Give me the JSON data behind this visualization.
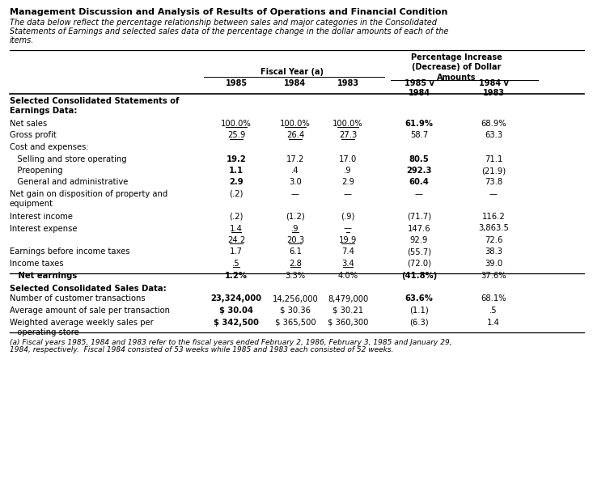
{
  "title": "Management Discussion and Analysis of Results of Operations and Financial Condition",
  "subtitle": "The data below reflect the percentage relationship between sales and major categories in the Consolidated\nStatements of Earnings and selected sales data of the percentage change in the dollar amounts of each of the\nitems.",
  "footnote": "(a) Fiscal years 1985, 1984 and 1983 refer to the fiscal years ended February 2, 1986, February 3, 1985 and January 29,\n1984, respectively.  Fiscal 1984 consisted of 53 weeks while 1985 and 1983 each consisted of 52 weeks.",
  "rows": [
    {
      "label": "Selected Consolidated Statements of\nEarnings Data:",
      "vals": [
        "",
        "",
        "",
        "",
        ""
      ],
      "label_bold": true,
      "val_bold": [
        false,
        false,
        false,
        false,
        false
      ],
      "section_header": true,
      "top_border": false,
      "underline": []
    },
    {
      "label": "Net sales",
      "vals": [
        "100.0%",
        "100.0%",
        "100.0%",
        "61.9%",
        "68.9%"
      ],
      "label_bold": false,
      "val_bold": [
        false,
        false,
        false,
        true,
        false
      ],
      "section_header": false,
      "top_border": false,
      "underline": [
        0,
        1,
        2
      ]
    },
    {
      "label": "Gross profit",
      "vals": [
        "25.9",
        "26.4",
        "27.3",
        "58.7",
        "63.3"
      ],
      "label_bold": false,
      "val_bold": [
        false,
        false,
        false,
        false,
        false
      ],
      "section_header": false,
      "top_border": false,
      "underline": [
        0,
        1,
        2
      ]
    },
    {
      "label": "Cost and expenses:",
      "vals": [
        "",
        "",
        "",
        "",
        ""
      ],
      "label_bold": false,
      "val_bold": [
        false,
        false,
        false,
        false,
        false
      ],
      "section_header": false,
      "top_border": false,
      "underline": []
    },
    {
      "label": "   Selling and store operating",
      "vals": [
        "19.2",
        "17.2",
        "17.0",
        "80.5",
        "71.1"
      ],
      "label_bold": false,
      "val_bold": [
        true,
        false,
        false,
        true,
        false
      ],
      "section_header": false,
      "top_border": false,
      "underline": []
    },
    {
      "label": "   Preopening",
      "vals": [
        "1.1",
        ".4",
        ".9",
        "292.3",
        "(21.9)"
      ],
      "label_bold": false,
      "val_bold": [
        true,
        false,
        false,
        true,
        false
      ],
      "section_header": false,
      "top_border": false,
      "underline": []
    },
    {
      "label": "   General and administrative",
      "vals": [
        "2.9",
        "3.0",
        "2.9",
        "60.4",
        "73.8"
      ],
      "label_bold": false,
      "val_bold": [
        true,
        false,
        false,
        true,
        false
      ],
      "section_header": false,
      "top_border": false,
      "underline": []
    },
    {
      "label": "Net gain on disposition of property and\nequipment",
      "vals": [
        "(.2)",
        "—",
        "—",
        "—",
        "—"
      ],
      "label_bold": false,
      "val_bold": [
        false,
        false,
        false,
        false,
        false
      ],
      "section_header": false,
      "top_border": false,
      "underline": []
    },
    {
      "label": "Interest income",
      "vals": [
        "(.2)",
        "(1.2)",
        "(.9)",
        "(71.7)",
        "116.2"
      ],
      "label_bold": false,
      "val_bold": [
        false,
        false,
        false,
        false,
        false
      ],
      "section_header": false,
      "top_border": false,
      "underline": []
    },
    {
      "label": "Interest expense",
      "vals": [
        "1.4",
        ".9",
        "—",
        "147.6",
        "3,863.5"
      ],
      "label_bold": false,
      "val_bold": [
        false,
        false,
        false,
        false,
        false
      ],
      "section_header": false,
      "top_border": false,
      "underline": [
        0,
        1,
        2
      ]
    },
    {
      "label": "",
      "vals": [
        "24.2",
        "20.3",
        "19.9",
        "92.9",
        "72.6"
      ],
      "label_bold": false,
      "val_bold": [
        false,
        false,
        false,
        false,
        false
      ],
      "section_header": false,
      "top_border": false,
      "underline": [
        0,
        1,
        2
      ]
    },
    {
      "label": "Earnings before income taxes",
      "vals": [
        "1.7",
        "6.1",
        "7.4",
        "(55.7)",
        "38.3"
      ],
      "label_bold": false,
      "val_bold": [
        false,
        false,
        false,
        false,
        false
      ],
      "section_header": false,
      "top_border": false,
      "underline": []
    },
    {
      "label": "Income taxes",
      "vals": [
        ".5",
        "2.8",
        "3.4",
        "(72.0)",
        "39.0"
      ],
      "label_bold": false,
      "val_bold": [
        false,
        false,
        false,
        false,
        false
      ],
      "section_header": false,
      "top_border": false,
      "underline": [
        0,
        1,
        2
      ]
    },
    {
      "label": "   Net earnings",
      "vals": [
        "1.2%",
        "3.3%",
        "4.0%",
        "(41.8%)",
        "37.6%"
      ],
      "label_bold": true,
      "val_bold": [
        true,
        false,
        false,
        true,
        false
      ],
      "section_header": false,
      "top_border": false,
      "underline": []
    },
    {
      "label": "Selected Consolidated Sales Data:",
      "vals": [
        "",
        "",
        "",
        "",
        ""
      ],
      "label_bold": true,
      "val_bold": [
        false,
        false,
        false,
        false,
        false
      ],
      "section_header": true,
      "top_border": true,
      "underline": []
    },
    {
      "label": "Number of customer transactions",
      "vals": [
        "23,324,000",
        "14,256,000",
        "8,479,000",
        "63.6%",
        "68.1%"
      ],
      "label_bold": false,
      "val_bold": [
        true,
        false,
        false,
        true,
        false
      ],
      "section_header": false,
      "top_border": false,
      "underline": []
    },
    {
      "label": "Average amount of sale per transaction",
      "vals": [
        "$ 30.04",
        "$ 30.36",
        "$ 30.21",
        "(1.1)",
        ".5"
      ],
      "label_bold": false,
      "val_bold": [
        true,
        false,
        false,
        false,
        false
      ],
      "section_header": false,
      "top_border": false,
      "underline": []
    },
    {
      "label": "Weighted average weekly sales per\n   operating store",
      "vals": [
        "$ 342,500",
        "$ 365,500",
        "$ 360,300",
        "(6.3)",
        "1.4"
      ],
      "label_bold": false,
      "val_bold": [
        true,
        false,
        false,
        false,
        false
      ],
      "section_header": false,
      "top_border": false,
      "underline": []
    }
  ],
  "bg_color": "white",
  "text_color": "black"
}
